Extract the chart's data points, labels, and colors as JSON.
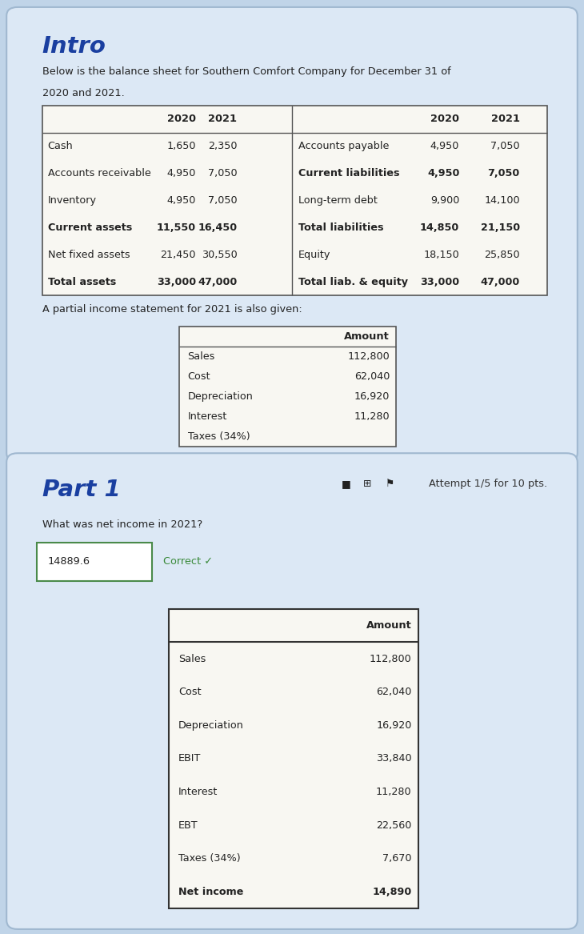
{
  "intro_title": "Intro",
  "intro_desc1": "Below is the balance sheet for Southern Comfort Company for December 31 of",
  "intro_desc2": "2020 and 2021.",
  "balance_sheet": {
    "left_rows": [
      {
        "label": "Cash",
        "bold": false,
        "v2020": "1,650",
        "v2021": "2,350"
      },
      {
        "label": "Accounts receivable",
        "bold": false,
        "v2020": "4,950",
        "v2021": "7,050"
      },
      {
        "label": "Inventory",
        "bold": false,
        "v2020": "4,950",
        "v2021": "7,050"
      },
      {
        "label": "Current assets",
        "bold": true,
        "v2020": "11,550",
        "v2021": "16,450"
      },
      {
        "label": "Net fixed assets",
        "bold": false,
        "v2020": "21,450",
        "v2021": "30,550"
      },
      {
        "label": "Total assets",
        "bold": true,
        "v2020": "33,000",
        "v2021": "47,000"
      }
    ],
    "right_rows": [
      {
        "label": "Accounts payable",
        "bold": false,
        "v2020": "4,950",
        "v2021": "7,050"
      },
      {
        "label": "Current liabilities",
        "bold": true,
        "v2020": "4,950",
        "v2021": "7,050"
      },
      {
        "label": "Long-term debt",
        "bold": false,
        "v2020": "9,900",
        "v2021": "14,100"
      },
      {
        "label": "Total liabilities",
        "bold": true,
        "v2020": "14,850",
        "v2021": "21,150"
      },
      {
        "label": "Equity",
        "bold": false,
        "v2020": "18,150",
        "v2021": "25,850"
      },
      {
        "label": "Total liab. & equity",
        "bold": true,
        "v2020": "33,000",
        "v2021": "47,000"
      }
    ]
  },
  "income_partial_label": "A partial income statement for 2021 is also given:",
  "income_partial_rows": [
    {
      "label": "Sales",
      "bold": false,
      "value": "112,800"
    },
    {
      "label": "Cost",
      "bold": false,
      "value": "62,040"
    },
    {
      "label": "Depreciation",
      "bold": false,
      "value": "16,920"
    },
    {
      "label": "Interest",
      "bold": false,
      "value": "11,280"
    },
    {
      "label": "Taxes (34%)",
      "bold": false,
      "value": ""
    }
  ],
  "part1_title": "Part 1",
  "part1_attempt": "Attempt 1/5 for 10 pts.",
  "part1_question": "What was net income in 2021?",
  "part1_answer": "14889.6",
  "part1_correct": "Correct ✓",
  "income_full_rows": [
    {
      "label": "Sales",
      "bold": false,
      "value": "112,800"
    },
    {
      "label": "Cost",
      "bold": false,
      "value": "62,040"
    },
    {
      "label": "Depreciation",
      "bold": false,
      "value": "16,920"
    },
    {
      "label": "EBIT",
      "bold": false,
      "value": "33,840"
    },
    {
      "label": "Interest",
      "bold": false,
      "value": "11,280"
    },
    {
      "label": "EBT",
      "bold": false,
      "value": "22,560"
    },
    {
      "label": "Taxes (34%)",
      "bold": false,
      "value": "7,670"
    },
    {
      "label": "Net income",
      "bold": true,
      "value": "14,890"
    }
  ],
  "outer_bg": "#c0d4e8",
  "panel_bg": "#dce8f5",
  "table_bg": "#f8f7f2",
  "title_color": "#1a3fa0",
  "text_color": "#222222",
  "panel_edge": "#a0b8d0",
  "table_edge": "#555555",
  "correct_color": "#3a8a3a",
  "answer_box_border": "#4a8a4a"
}
